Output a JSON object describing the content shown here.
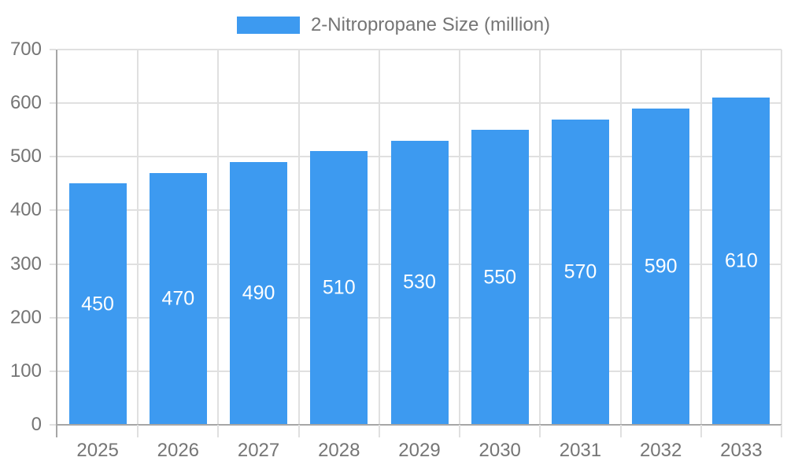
{
  "legend": {
    "label": "2-Nitropropane Size (million)"
  },
  "chart_data": {
    "type": "bar",
    "title": "",
    "xlabel": "",
    "ylabel": "",
    "categories": [
      "2025",
      "2026",
      "2027",
      "2028",
      "2029",
      "2030",
      "2031",
      "2032",
      "2033"
    ],
    "series": [
      {
        "name": "2-Nitropropane Size (million)",
        "values": [
          450,
          470,
          490,
          510,
          530,
          550,
          570,
          590,
          610
        ]
      }
    ],
    "bar_value_labels": [
      450,
      470,
      490,
      510,
      530,
      550,
      570,
      590,
      610
    ],
    "ylim": [
      0,
      700
    ],
    "ytick_step": 100,
    "ytick_labels": [
      "0",
      "100",
      "200",
      "300",
      "400",
      "500",
      "600",
      "700"
    ],
    "grid": true,
    "legend_position": "top",
    "colors": {
      "bar": "#3D9AF0",
      "bar_label_text": "#FFFFFF",
      "axis_text": "#757575",
      "grid_line": "#E0E0E0",
      "axis_line": "#A6A6A6",
      "background": "#FFFFFF"
    }
  }
}
